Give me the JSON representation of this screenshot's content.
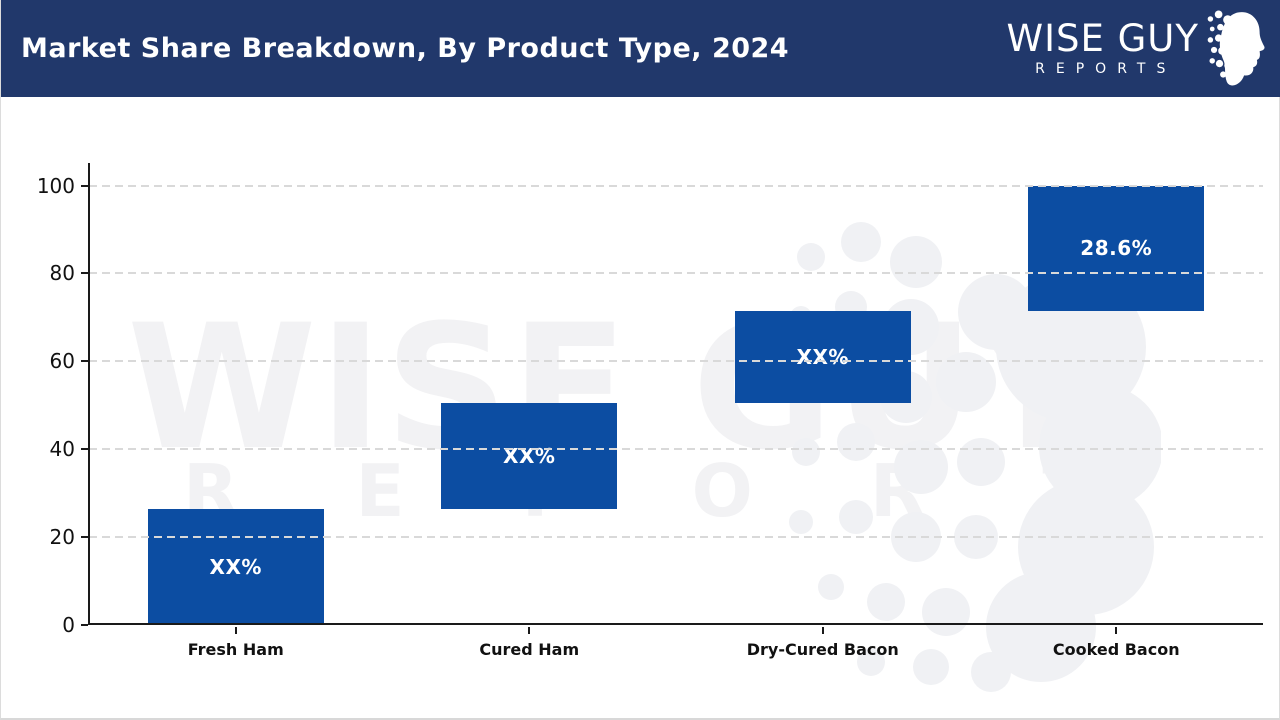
{
  "header": {
    "title": "Market Share Breakdown, By Product Type, 2024",
    "logo": {
      "line1": "WISE GUY",
      "line2": "REPORTS"
    }
  },
  "watermark": {
    "line1": "WISE GUY",
    "line2": "R E P O R T S"
  },
  "colors": {
    "header_bg": "#21386b",
    "bar": "#0c4da2",
    "grid": "#d9d9d9",
    "axis": "#1a1a1a",
    "bar_label": "#ffffff",
    "watermark": "#f2f2f4"
  },
  "chart_data": {
    "type": "bar",
    "subtype": "waterfall",
    "title": "Market Share Breakdown, By Product Type, 2024",
    "categories": [
      "Fresh Ham",
      "Cured Ham",
      "Dry-Cured Bacon",
      "Cooked Bacon"
    ],
    "values": [
      26.5,
      23.9,
      21.0,
      28.6
    ],
    "cumulative_ranges": [
      [
        0,
        26.5
      ],
      [
        26.5,
        50.4
      ],
      [
        50.4,
        71.4
      ],
      [
        71.4,
        100
      ]
    ],
    "bar_labels": [
      "XX%",
      "XX%",
      "XX%",
      "28.6%"
    ],
    "yticks": [
      0,
      20,
      40,
      60,
      80,
      100
    ],
    "ylim": [
      0,
      105
    ],
    "xlabel": "",
    "ylabel": "",
    "grid": "horizontal-dashed-over-bars",
    "legend": "none",
    "bar_color": "#0c4da2"
  }
}
